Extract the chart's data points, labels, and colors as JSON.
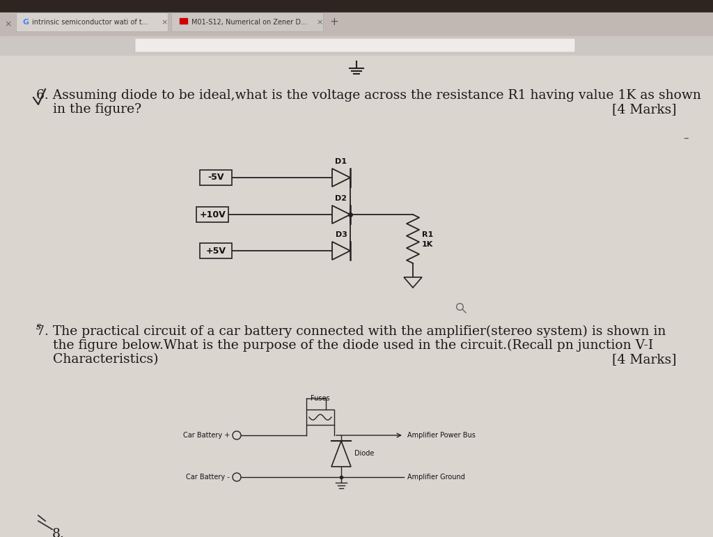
{
  "bg_outer": "#6b5a52",
  "bg_chrome": "#b5aba6",
  "bg_tabbar": "#c2b8b3",
  "bg_page": "#ddd8d4",
  "bg_nav": "#ccc7c2",
  "tab1_bg": "#d8d2ce",
  "tab2_bg": "#ccc7c3",
  "topbar_color": "#2e2420",
  "page_content_bg": "#dbd5d0",
  "text_dark": "#1a1a1a",
  "text_mid": "#333333",
  "line_color": "#222222",
  "q6_line1": "6. Assuming diode to be ideal,what is the voltage across the resistance R1 having value 1K as shown",
  "q6_line2": "    in the figure?",
  "q6_marks": "[4 Marks]",
  "q7_line1": "7. The practical circuit of a car battery connected with the amplifier(stereo system) is shown in",
  "q7_line2": "    the figure below.What is the purpose of the diode used in the circuit.(Recall pn junction V-I",
  "q7_line3": "    Characteristics)",
  "q7_marks": "[4 Marks]",
  "vsource_labels": [
    "-5V",
    "+10V",
    "+5V"
  ],
  "diode_labels": [
    "D1",
    "D2",
    "D3"
  ],
  "res_label": "R1",
  "res_val": "1K",
  "font_body": 13.5,
  "font_small": 8,
  "font_tiny": 7
}
